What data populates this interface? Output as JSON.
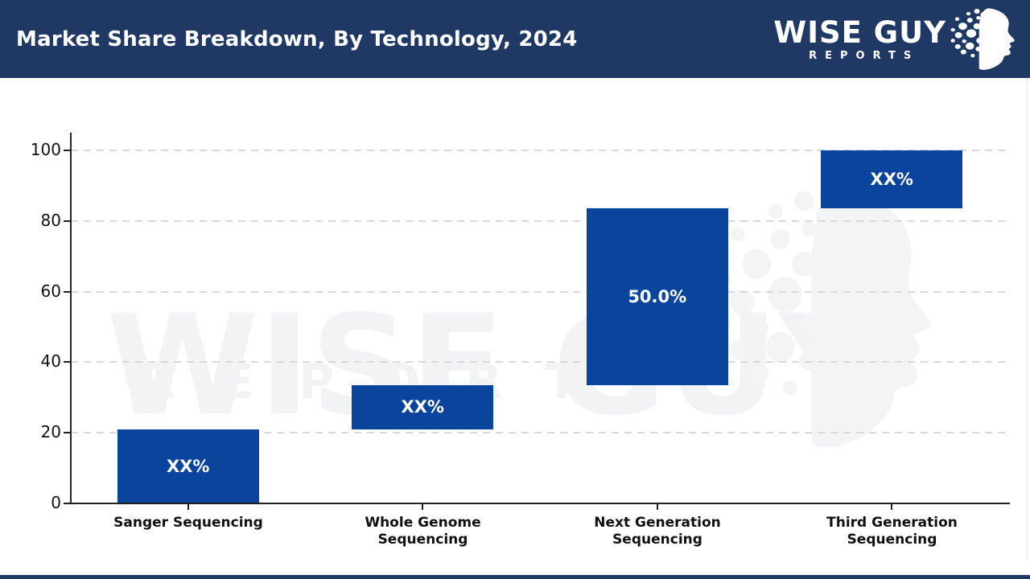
{
  "header": {
    "title": "Market Share Breakdown, By Technology, 2024",
    "logo_line1": "WISE GUY",
    "logo_line2": "REPORTS"
  },
  "watermark": {
    "line1": "WISE GUY",
    "line2": "REPORTS"
  },
  "chart_data": {
    "type": "bar",
    "variant": "waterfall",
    "title": "Market Share Breakdown, By Technology, 2024",
    "categories": [
      [
        "Sanger Sequencing"
      ],
      [
        "Whole Genome",
        "Sequencing"
      ],
      [
        "Next Generation",
        "Sequencing"
      ],
      [
        "Third Generation",
        "Sequencing"
      ]
    ],
    "bars": [
      {
        "category": "Sanger Sequencing",
        "start": 0,
        "end": 21,
        "value_label": "XX%"
      },
      {
        "category": "Whole Genome Sequencing",
        "start": 21,
        "end": 33.5,
        "value_label": "XX%"
      },
      {
        "category": "Next Generation Sequencing",
        "start": 33.5,
        "end": 83.5,
        "value_label": "50.0%",
        "value": 50.0
      },
      {
        "category": "Third Generation Sequencing",
        "start": 83.5,
        "end": 100,
        "value_label": "XX%"
      }
    ],
    "xlabel": "",
    "ylabel": "",
    "ylim": [
      0,
      100
    ],
    "yticks": [
      0,
      20,
      40,
      60,
      80,
      100
    ],
    "grid": "dashed-horizontal",
    "legend": "none",
    "colors": {
      "bar": "#0a449c",
      "header": "#1f3864",
      "grid": "#d9d9d9",
      "axis": "#222222",
      "watermark": "#f2f3f5",
      "bar_label": "#ffffff"
    }
  }
}
